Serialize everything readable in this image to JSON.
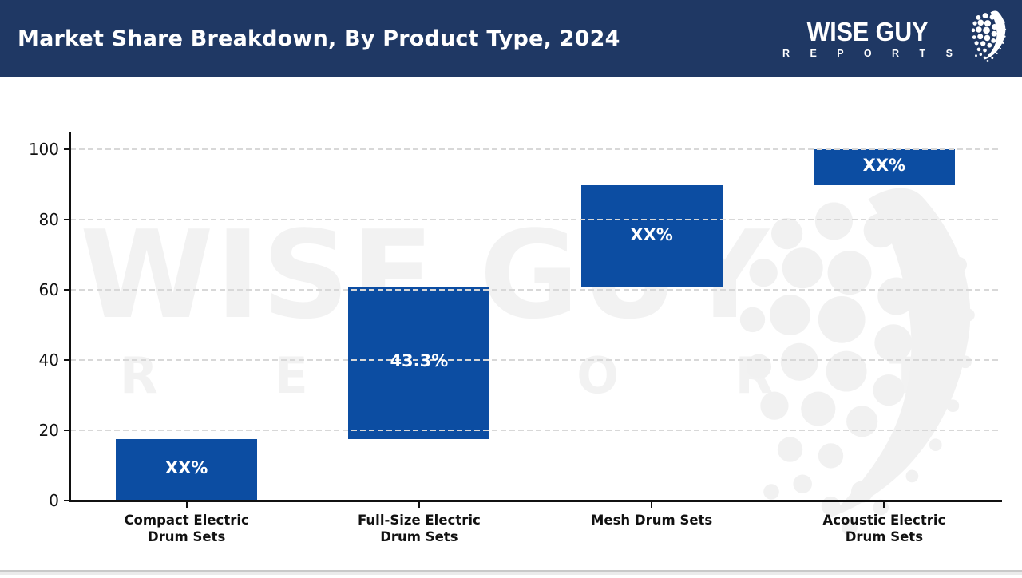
{
  "header": {
    "title": "Market Share Breakdown, By Product Type, 2024",
    "logo": {
      "line1": "WISE GUY",
      "line2": "R E P O R T S"
    }
  },
  "watermark": {
    "line1": "WISE GUY",
    "line2": "R E P O R T S"
  },
  "colors": {
    "header_bg": "#1F3864",
    "bar": "#0C4DA2",
    "grid": "#D8D8D8",
    "axis": "#111111",
    "value_label_text": "#FFFFFF",
    "watermark": "#F2F2F2"
  },
  "chart_data": {
    "type": "bar",
    "subtype": "floating-waterfall",
    "title": "Market Share Breakdown, By Product Type, 2024",
    "categories": [
      [
        "Compact Electric",
        "Drum Sets"
      ],
      [
        "Full-Size Electric",
        "Drum Sets"
      ],
      [
        "Mesh Drum Sets"
      ],
      [
        "Acoustic Electric",
        "Drum Sets"
      ]
    ],
    "segments": [
      {
        "start": 0,
        "end": 17.5,
        "label": "XX%"
      },
      {
        "start": 17.5,
        "end": 60.8,
        "label": "43.3%"
      },
      {
        "start": 60.8,
        "end": 89.6,
        "label": "XX%"
      },
      {
        "start": 89.6,
        "end": 100,
        "label": "XX%"
      }
    ],
    "xlabel": "",
    "ylabel": "",
    "yticks": [
      0,
      20,
      40,
      60,
      80,
      100
    ],
    "ylim": [
      0,
      105
    ],
    "grid": "dashed-horizontal",
    "legend": "none"
  }
}
